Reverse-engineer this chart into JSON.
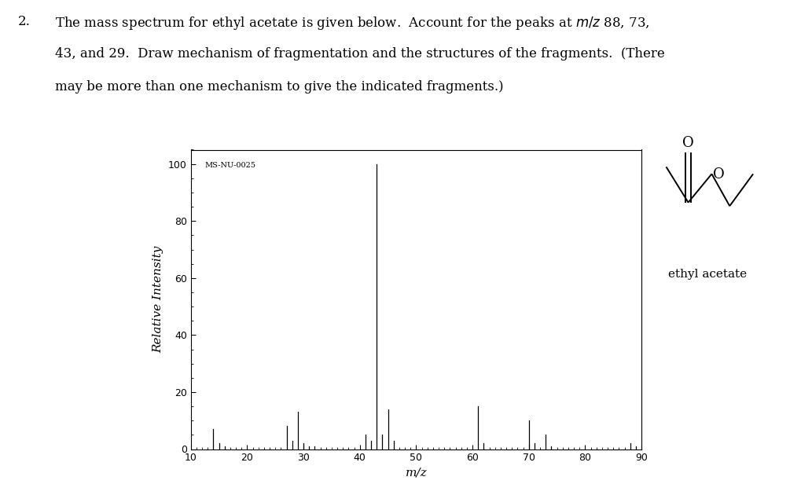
{
  "annotation": "MS-NU-0025",
  "xlabel": "m/z",
  "ylabel": "Relative Intensity",
  "xlim": [
    10,
    90
  ],
  "ylim": [
    0,
    105
  ],
  "xticks": [
    10,
    20,
    30,
    40,
    50,
    60,
    70,
    80,
    90
  ],
  "yticks": [
    0,
    20,
    40,
    60,
    80,
    100
  ],
  "peaks": [
    [
      14,
      7
    ],
    [
      15,
      2
    ],
    [
      16,
      1
    ],
    [
      27,
      8
    ],
    [
      28,
      3
    ],
    [
      29,
      13
    ],
    [
      30,
      2
    ],
    [
      31,
      1
    ],
    [
      32,
      1
    ],
    [
      41,
      5
    ],
    [
      42,
      3
    ],
    [
      43,
      100
    ],
    [
      44,
      5
    ],
    [
      45,
      14
    ],
    [
      46,
      3
    ],
    [
      61,
      15
    ],
    [
      62,
      2
    ],
    [
      70,
      10
    ],
    [
      71,
      2
    ],
    [
      73,
      5
    ],
    [
      74,
      1
    ],
    [
      88,
      2
    ],
    [
      89,
      1
    ]
  ],
  "bg_color": "#ffffff",
  "plot_bg": "#ffffff",
  "line_color": "#000000",
  "tick_color": "#000000",
  "spine_color": "#000000",
  "annotation_fontsize": 7,
  "axis_label_fontsize": 11,
  "tick_fontsize": 9,
  "figsize": [
    10.33,
    6.35
  ],
  "dpi": 100,
  "compound_name": "ethyl acetate",
  "question_number": "2.",
  "question_line1": "The mass spectrum for ethyl acetate is given below.  Account for the peaks at $m/z$ 88, 73,",
  "question_line2": "43, and 29.  Draw mechanism of fragmentation and the structures of the fragments.  (There",
  "question_line3": "may be more than one mechanism to give the indicated fragments.)"
}
